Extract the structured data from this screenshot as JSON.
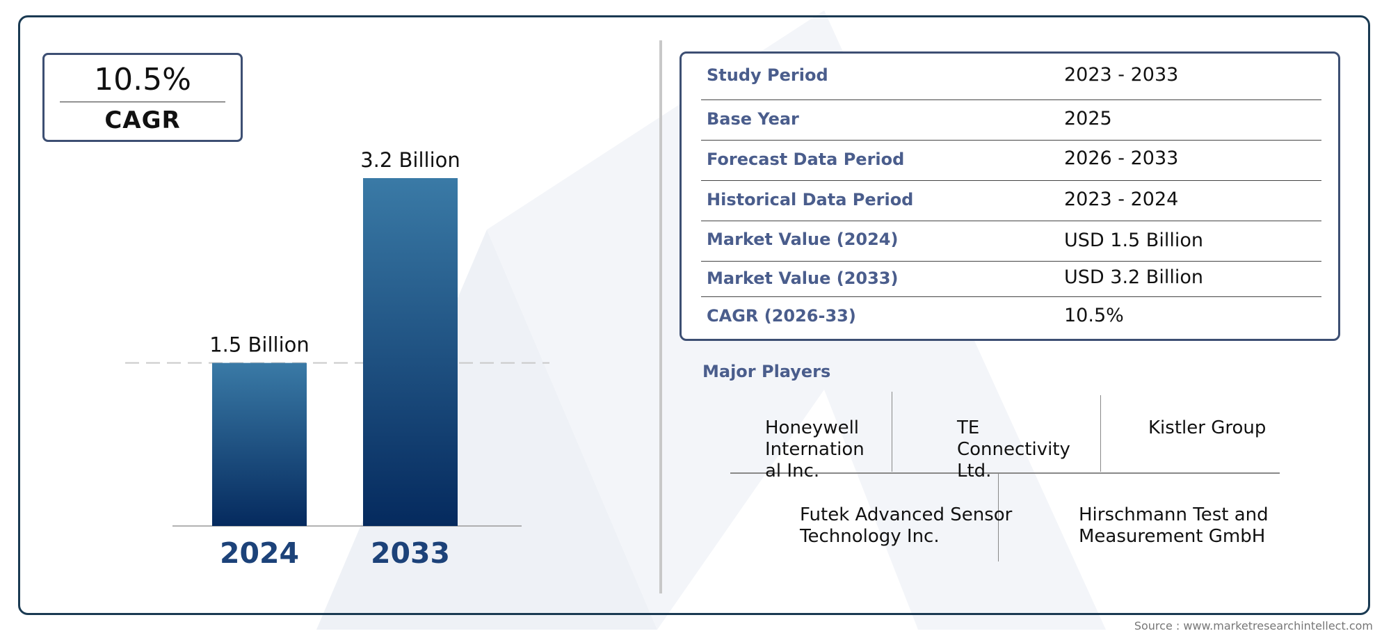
{
  "cagr_badge": {
    "value": "10.5%",
    "label": "CAGR"
  },
  "chart_data": {
    "type": "bar",
    "categories": [
      "2024",
      "2033"
    ],
    "values": [
      1.5,
      3.2
    ],
    "data_labels": [
      "1.5 Billion",
      "3.2 Billion"
    ],
    "title": "",
    "xlabel": "",
    "ylabel": "",
    "ylim": [
      0,
      3.2
    ],
    "grid": false,
    "reference_line_at": 1.5,
    "bar_color_top": "#3a7aa6",
    "bar_color_bottom": "#052a5e"
  },
  "info_table": {
    "rows": [
      {
        "label": "Study Period",
        "value": "2023 - 2033"
      },
      {
        "label": "Base Year",
        "value": "2025"
      },
      {
        "label": "Forecast Data Period",
        "value": "2026 - 2033"
      },
      {
        "label": "Historical Data Period",
        "value": "2023 - 2024"
      },
      {
        "label": "Market Value (2024)",
        "value": "USD 1.5 Billion"
      },
      {
        "label": "Market Value (2033)",
        "value": "USD 3.2 Billion"
      },
      {
        "label": "CAGR (2026-33)",
        "value": "10.5%"
      }
    ]
  },
  "players": {
    "title": "Major Players",
    "items": [
      "Honeywell Internation al Inc.",
      "TE Connectivity Ltd.",
      "Kistler Group",
      "Futek Advanced Sensor Technology Inc.",
      "Hirschmann Test and Measurement GmbH"
    ]
  },
  "source": "Source : www.marketresearchintellect.com",
  "colors": {
    "accent": "#4a5d8c",
    "frame": "#1a3a52"
  }
}
